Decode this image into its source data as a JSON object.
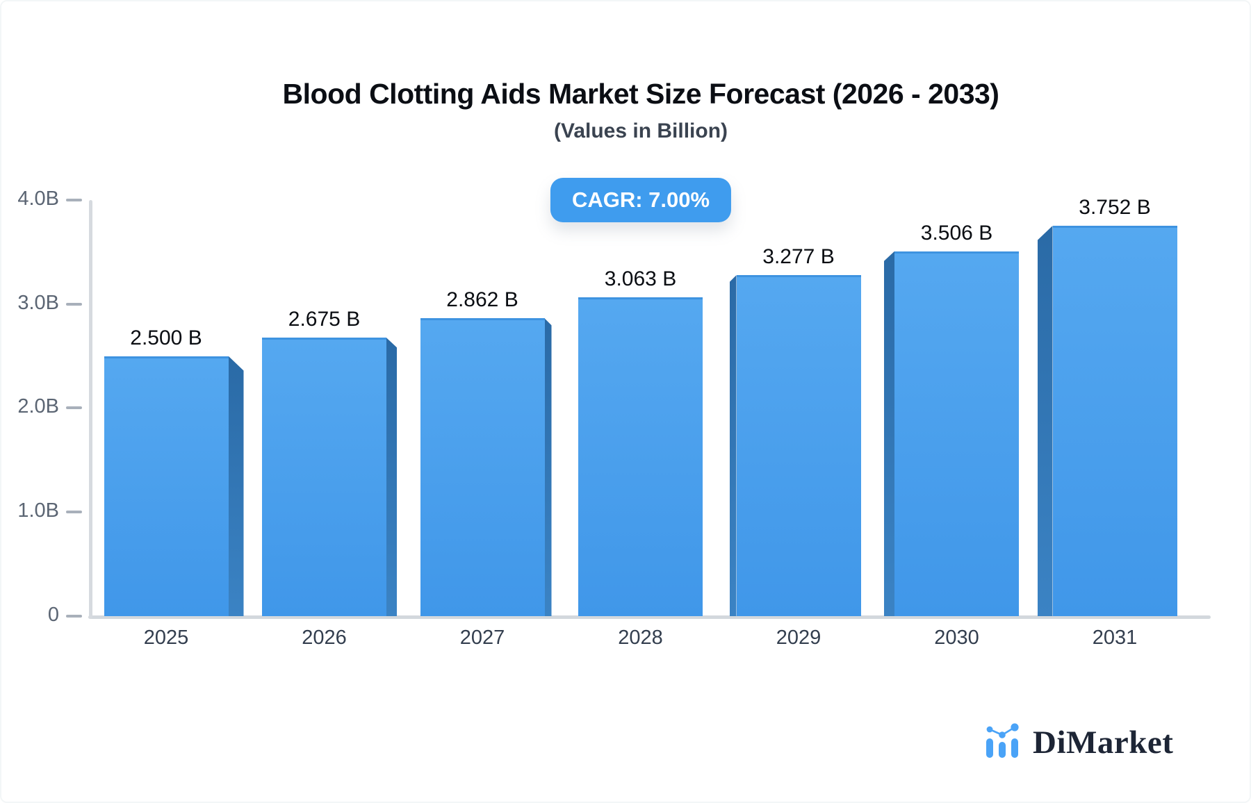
{
  "header": {
    "title": "Blood Clotting Aids Market Size Forecast (2026 - 2033)",
    "subtitle": "(Values in Billion)",
    "cagr_badge": "CAGR: 7.00%"
  },
  "chart_data": {
    "type": "bar",
    "title": "Blood Clotting Aids Market Size Forecast (2026 - 2033)",
    "subtitle": "(Values in Billion)",
    "unit": "Billion",
    "cagr_percent": "7.00%",
    "categories": [
      "2025",
      "2026",
      "2027",
      "2028",
      "2029",
      "2030",
      "2031"
    ],
    "values": [
      2.5,
      2.675,
      2.862,
      3.063,
      3.277,
      3.506,
      3.752
    ],
    "value_labels": [
      "2.500 B",
      "2.675 B",
      "2.862 B",
      "3.063 B",
      "3.277 B",
      "3.506 B",
      "3.752 B"
    ],
    "y_ticks": [
      {
        "label": "4.0B",
        "value": 4.0
      },
      {
        "label": "3.0B",
        "value": 3.0
      },
      {
        "label": "2.0B",
        "value": 2.0
      },
      {
        "label": "1.0B",
        "value": 1.0
      },
      {
        "label": "0",
        "value": 0.0
      }
    ],
    "ylim": [
      0,
      4.0
    ],
    "grid": false,
    "legend": false,
    "style": "3d-perspective-bars",
    "colors": {
      "bar_face": "#46a0ec",
      "bar_side": "#2f76b6",
      "badge": "#3f9cee",
      "axis": "#d6dadf",
      "tick_text": "#5b6573",
      "category_text": "#333e4e",
      "value_text": "#0a0d12"
    }
  },
  "branding": {
    "logo_text": "DiMarket",
    "logo_icon": "bar-chart-trend-icon",
    "logo_text_color": "#1d2535",
    "logo_accent_color": "#4aa3f7"
  }
}
